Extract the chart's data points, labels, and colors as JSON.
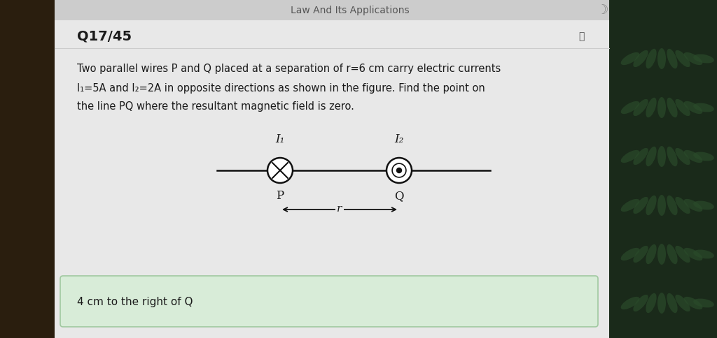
{
  "bg_color": "#2b2b2b",
  "content_bg": "#e8e8e8",
  "left_bezel_color": "#3a2a1a",
  "right_deco_color": "#2a4a2a",
  "text_color": "#1a1a1a",
  "title_top": "Law And Its Applications",
  "question_label": "Q17/45",
  "line1": "Two parallel wires P and Q placed at a separation of r=6 cm carry electric currents",
  "line2": "I₁=5A and I₂=2A in opposite directions as shown in the figure. Find the point on",
  "line3": "the line PQ where the resultant magnetic field is zero.",
  "answer_text": "4 cm to the right of Q",
  "answer_bg": "#d8ecd8",
  "answer_border": "#a0c8a0",
  "wire_P_label": "P",
  "wire_Q_label": "Q",
  "I1_label": "I₁",
  "I2_label": "I₂",
  "r_label": "r",
  "top_bar_bg": "#d0d0d0",
  "top_text_color": "#555555",
  "moon_color": "#888888"
}
